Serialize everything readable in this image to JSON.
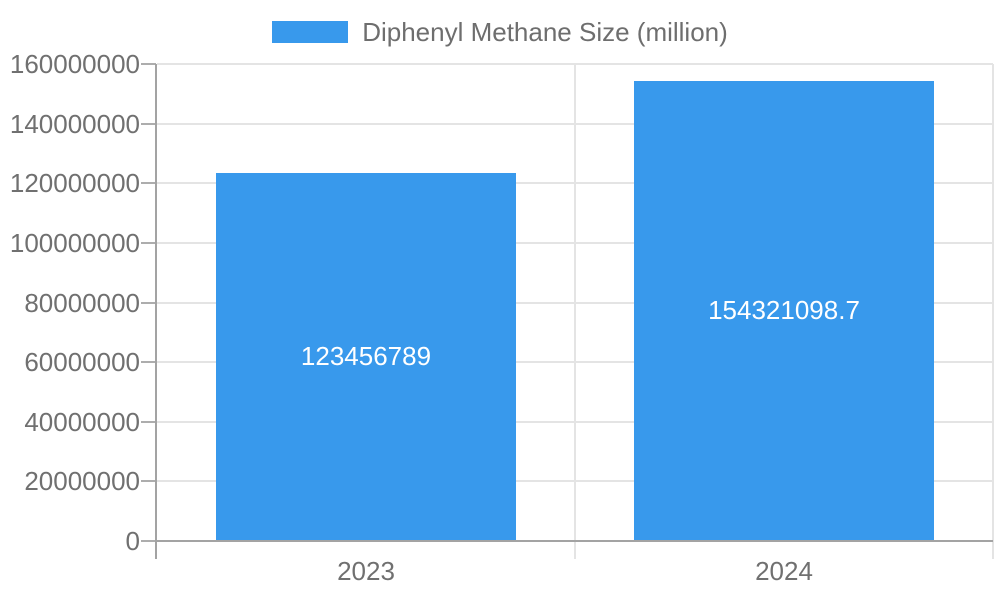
{
  "chart_data": {
    "type": "bar",
    "title": "Diphenyl Methane Size (million)",
    "legend": {
      "position": "top",
      "entries": [
        {
          "label": "Diphenyl Methane Size (million)",
          "color": "#3899EC"
        }
      ]
    },
    "categories": [
      "2023",
      "2024"
    ],
    "series": [
      {
        "name": "Diphenyl Methane Size (million)",
        "values": [
          123456789,
          154321098.7
        ]
      }
    ],
    "value_labels": [
      "123456789",
      "154321098.7"
    ],
    "xlabel": "",
    "ylabel": "",
    "ylim": [
      0,
      160000000
    ],
    "yticks": [
      0,
      20000000,
      40000000,
      60000000,
      80000000,
      100000000,
      120000000,
      140000000,
      160000000
    ],
    "ytick_labels": [
      "0",
      "20000000",
      "40000000",
      "60000000",
      "80000000",
      "100000000",
      "120000000",
      "140000000",
      "160000000"
    ],
    "grid": true,
    "bar_color": "#3899EC",
    "value_label_color": "#FFFFFF"
  },
  "colors": {
    "background": "#FFFFFF",
    "grid": "#E4E4E4",
    "axis": "#A3A3A3",
    "tick": "#ADADAD",
    "label_text": "#707070",
    "legend_text": "#6E6E6E"
  }
}
